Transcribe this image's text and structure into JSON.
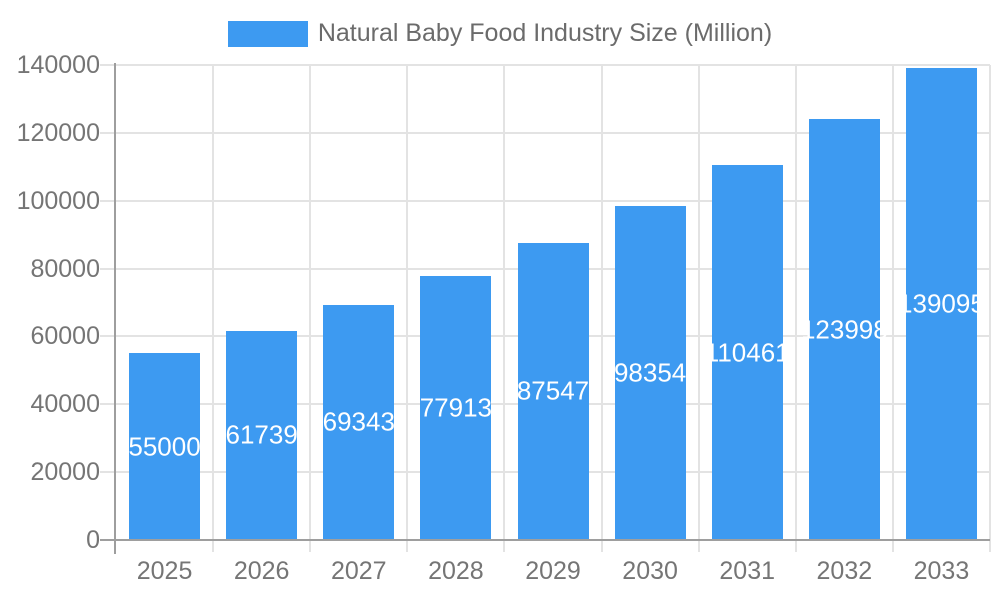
{
  "chart_data": {
    "type": "bar",
    "title": "",
    "legend": {
      "label": "Natural Baby Food Industry Size (Million)",
      "position": "top"
    },
    "categories": [
      "2025",
      "2026",
      "2027",
      "2028",
      "2029",
      "2030",
      "2031",
      "2032",
      "2033"
    ],
    "series": [
      {
        "name": "Natural Baby Food Industry Size (Million)",
        "values": [
          55000,
          61739,
          69343,
          77913,
          87547,
          98354,
          110461,
          123998,
          139095
        ]
      }
    ],
    "xlabel": "",
    "ylabel": "",
    "ylim": [
      0,
      140000
    ],
    "yticks": [
      0,
      20000,
      40000,
      60000,
      80000,
      100000,
      120000,
      140000
    ],
    "grid": "horizontal and vertical category boundaries",
    "bar_value_labels_shown": true
  },
  "colors": {
    "bar": "#3d9af1",
    "gridline": "#e3e3e3",
    "axis": "#9e9e9e",
    "tick_label": "#757575",
    "legend_text": "#6b6b6b",
    "bar_label_text": "#ffffff",
    "background": "#ffffff"
  }
}
